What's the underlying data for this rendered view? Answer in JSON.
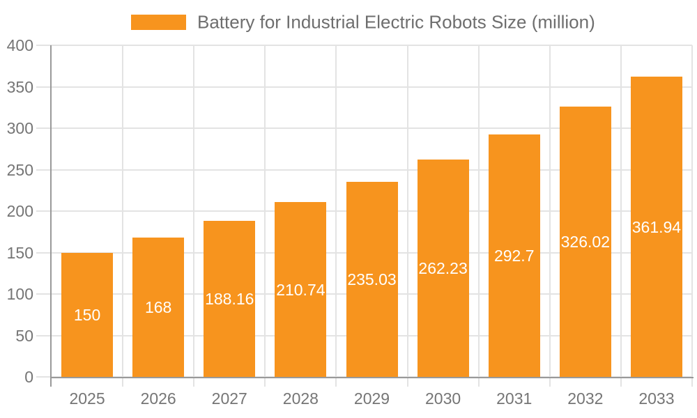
{
  "chart_data": {
    "type": "bar",
    "title": "Battery for Industrial Electric Robots Size (million)",
    "categories": [
      "2025",
      "2026",
      "2027",
      "2028",
      "2029",
      "2030",
      "2031",
      "2032",
      "2033"
    ],
    "values": [
      150,
      168,
      188.16,
      210.74,
      235.03,
      262.23,
      292.7,
      326.02,
      361.94
    ],
    "data_labels": [
      "150",
      "168",
      "188.16",
      "210.74",
      "235.03",
      "262.23",
      "292.7",
      "326.02",
      "361.94"
    ],
    "ylabel": "",
    "xlabel": "",
    "ylim": [
      0,
      400
    ],
    "yticks": [
      0,
      50,
      100,
      150,
      200,
      250,
      300,
      350,
      400
    ],
    "ytick_labels": [
      "0",
      "50",
      "100",
      "150",
      "200",
      "250",
      "300",
      "350",
      "400"
    ],
    "grid": true,
    "legend_position": "top",
    "colors": {
      "bar": "#f7941e",
      "axis_line": "#999999",
      "gridline": "#e3e3e3",
      "tick": "#e3e3e3",
      "axis_label": "#757575",
      "legend_label": "#6e6e6e",
      "data_label": "#ffffff",
      "background": "#ffffff"
    }
  }
}
